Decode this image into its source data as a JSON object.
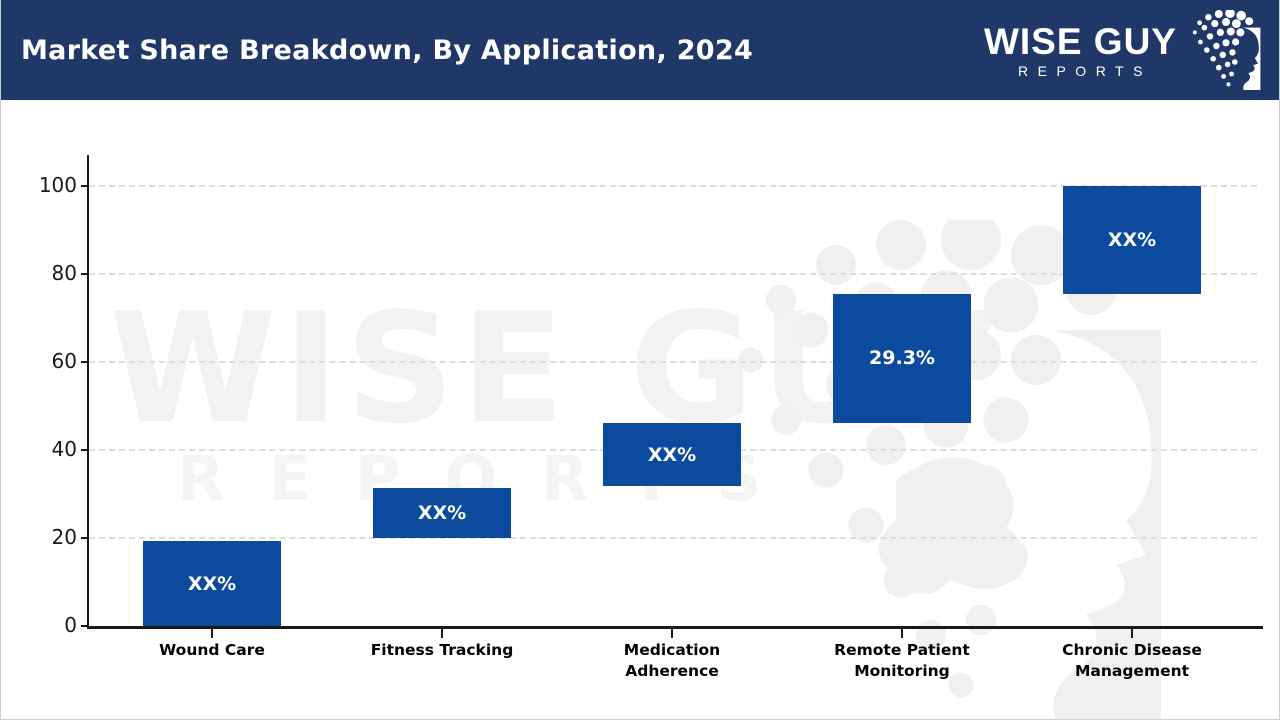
{
  "header": {
    "title": "Market Share Breakdown, By Application, 2024",
    "logo": {
      "line1": "WISE GUY",
      "line2": "REPORTS"
    }
  },
  "watermark": {
    "line1": "WISE GUY",
    "line2": "REPORTS"
  },
  "colors": {
    "header_bg": "#203867",
    "bar": "#0b4a9c",
    "grid": "#dcdcdc",
    "axis": "#1a1a1a",
    "bar_label": "#ffffff",
    "watermark": "#f0f0f0"
  },
  "chart_data": {
    "type": "bar",
    "subtype": "waterfall-floating-bars",
    "title": "Market Share Breakdown, By Application, 2024",
    "categories": [
      "Wound Care",
      "Fitness Tracking",
      "Medication Adherence",
      "Remote Patient Monitoring",
      "Chronic Disease Management"
    ],
    "segments": [
      {
        "category": "Wound Care",
        "label_lines": [
          "Wound Care"
        ],
        "start": 0,
        "end": 19.3,
        "value_label": "XX%"
      },
      {
        "category": "Fitness Tracking",
        "label_lines": [
          "Fitness Tracking"
        ],
        "start": 20,
        "end": 31.4,
        "value_label": "XX%"
      },
      {
        "category": "Medication Adherence",
        "label_lines": [
          "Medication",
          "Adherence"
        ],
        "start": 31.8,
        "end": 46.1,
        "value_label": "XX%"
      },
      {
        "category": "Remote Patient Monitoring",
        "label_lines": [
          "Remote Patient",
          "Monitoring"
        ],
        "start": 46.2,
        "end": 75.5,
        "value_label": "29.3%"
      },
      {
        "category": "Chronic Disease Management",
        "label_lines": [
          "Chronic Disease",
          "Management"
        ],
        "start": 75.5,
        "end": 100,
        "value_label": "XX%"
      }
    ],
    "yticks": [
      0,
      20,
      40,
      60,
      80,
      100
    ],
    "ylim": [
      0,
      100
    ],
    "xlabel": "",
    "ylabel": "",
    "grid": "horizontal-dashed",
    "legend": "none",
    "bar_color": "#0b4a9c"
  }
}
